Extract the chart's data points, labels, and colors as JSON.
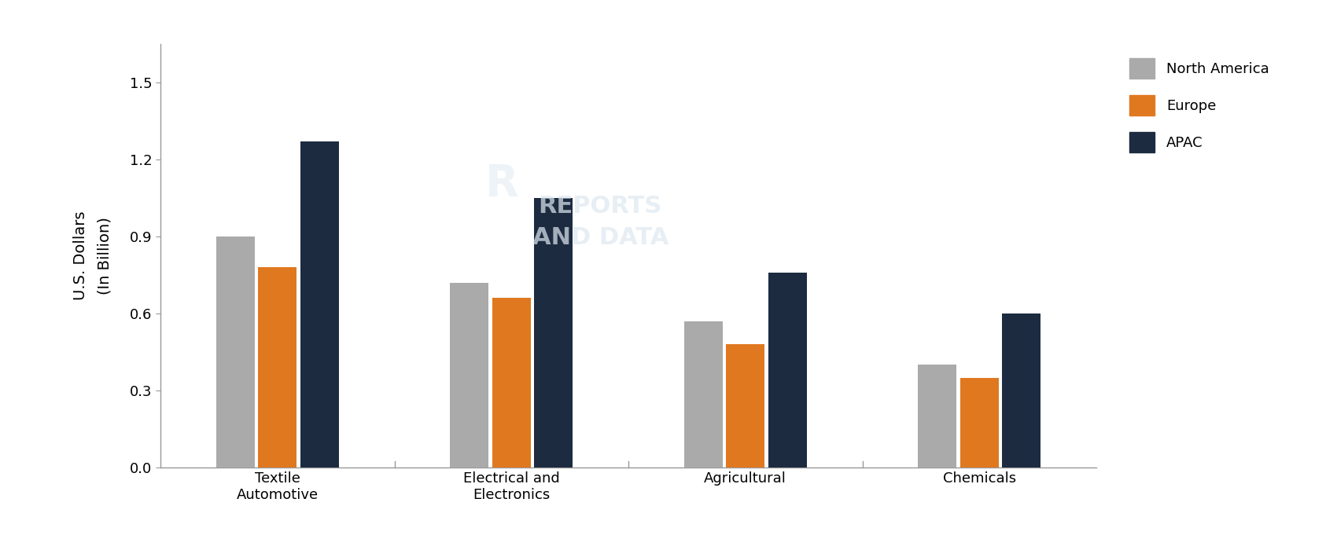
{
  "categories": [
    "Textile\nAutomotive",
    "Electrical and\nElectronics",
    "Agricultural",
    "Chemicals"
  ],
  "series": {
    "North America": [
      0.9,
      0.72,
      0.57,
      0.4
    ],
    "Europe": [
      0.78,
      0.66,
      0.48,
      0.35
    ],
    "APAC": [
      1.27,
      1.05,
      0.76,
      0.6
    ]
  },
  "colors": {
    "North America": "#aaaaaa",
    "Europe": "#e07820",
    "APAC": "#1c2b40"
  },
  "ylabel": "U.S. Dollars\n(In Billion)",
  "ylim": [
    0,
    1.65
  ],
  "yticks": [
    0.0,
    0.3,
    0.6,
    0.9,
    1.2,
    1.5
  ],
  "bar_width": 0.18,
  "legend_labels": [
    "North America",
    "Europe",
    "APAC"
  ],
  "background_color": "#ffffff",
  "ylabel_fontsize": 14,
  "tick_fontsize": 13,
  "legend_fontsize": 13
}
